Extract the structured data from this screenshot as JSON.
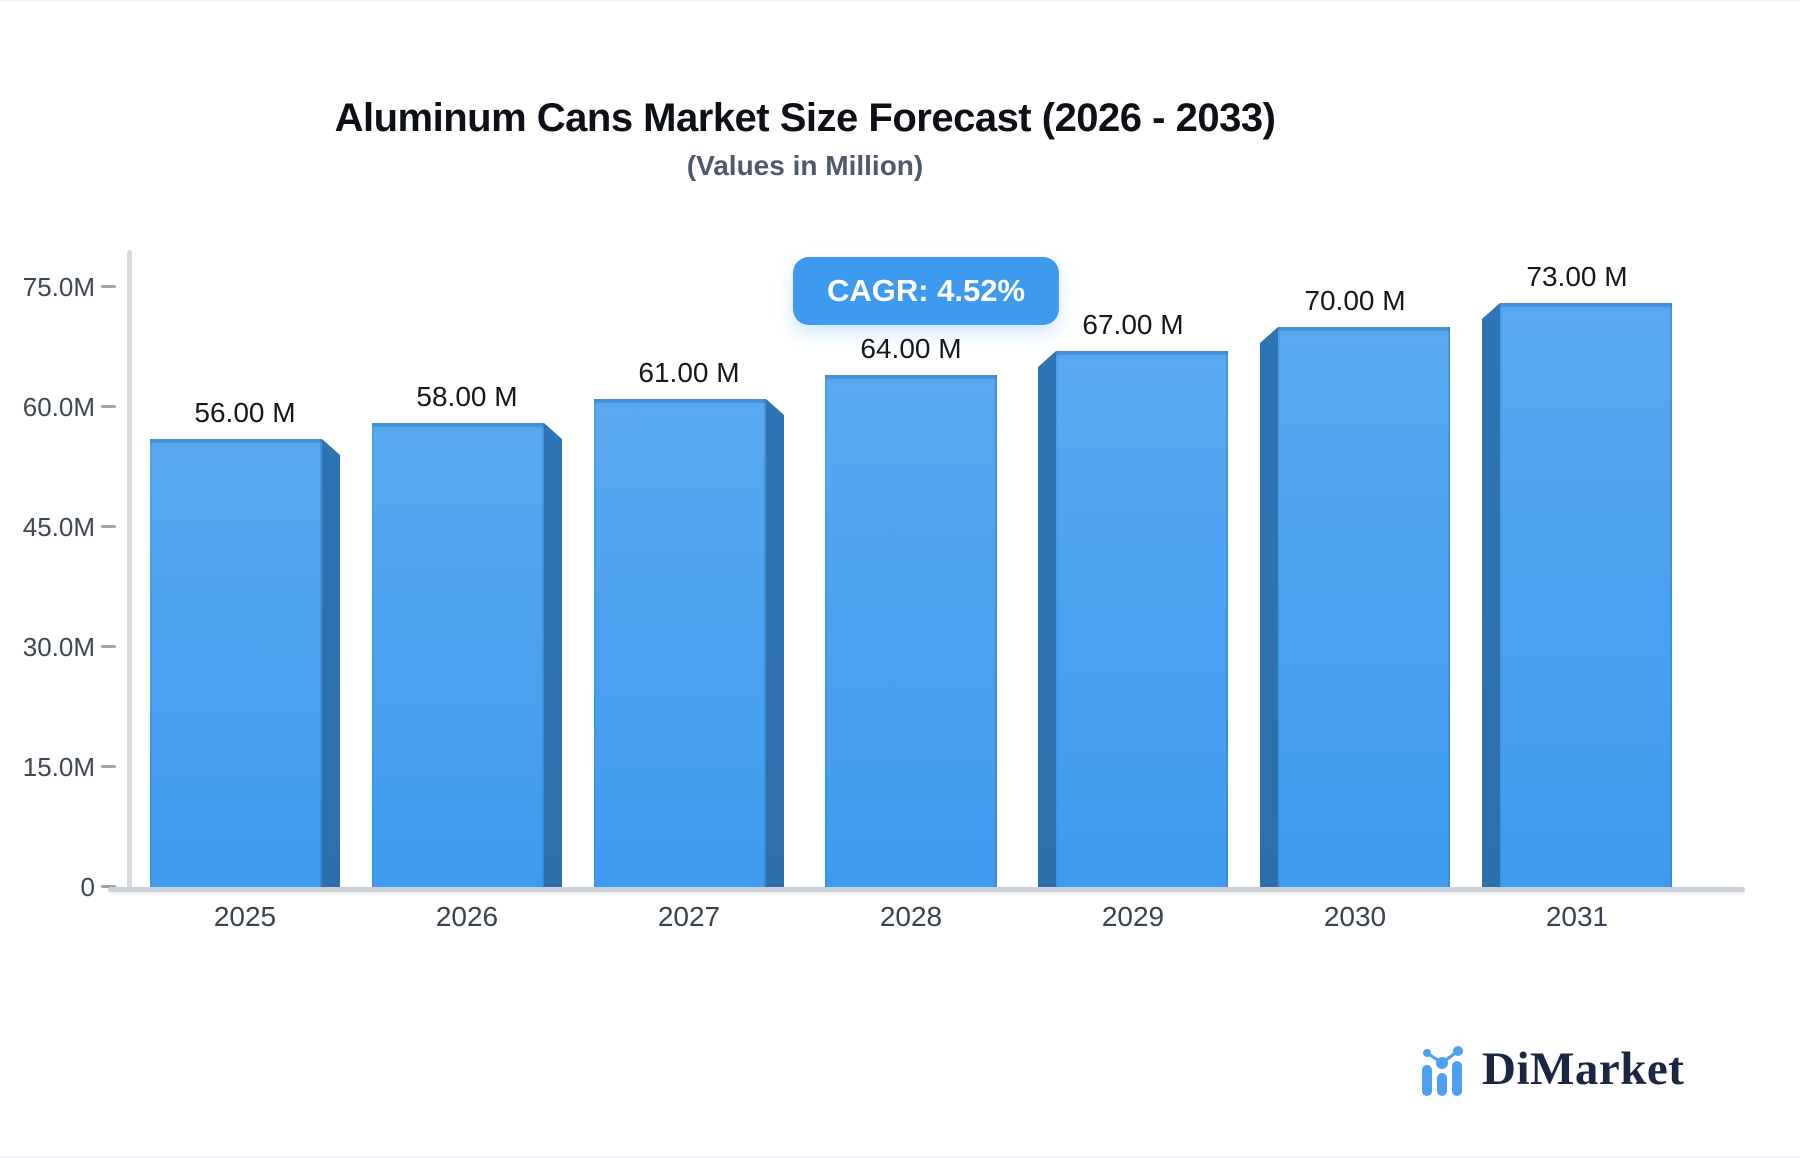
{
  "header": {
    "title": "Aluminum Cans Market Size Forecast (2026 - 2033)",
    "subtitle": "(Values in Million)"
  },
  "cagr": {
    "label": "CAGR: 4.52%",
    "background": "#3e9aef",
    "text_color": "#ffffff"
  },
  "chart_data": {
    "type": "bar",
    "title": "Aluminum Cans Market Size Forecast (2026 - 2033)",
    "subtitle": "(Values in Million)",
    "categories": [
      "2025",
      "2026",
      "2027",
      "2028",
      "2029",
      "2030",
      "2031"
    ],
    "values": [
      56,
      58,
      61,
      64,
      67,
      70,
      73
    ],
    "value_labels": [
      "56.00 M",
      "58.00 M",
      "61.00 M",
      "64.00 M",
      "67.00 M",
      "70.00 M",
      "73.00 M"
    ],
    "unit": "Million",
    "ylim": [
      0,
      75
    ],
    "ytick_values": [
      75,
      60,
      45,
      30,
      15,
      0
    ],
    "ytick_labels": [
      "75.0M",
      "60.0M",
      "45.0M",
      "30.0M",
      "15.0M",
      "0"
    ],
    "grid": false,
    "legend": "none",
    "annotation": "CAGR: 4.52%",
    "colors": {
      "bar_face_top": "#58a9f1",
      "bar_face_bottom": "#3f9bf0",
      "bar_top_edge": "#4590da",
      "bar_edge": "#3c87cf",
      "bar_side": "#2e74b4",
      "axis_line": "#d6dbe2",
      "tick": "#9aa3ae",
      "tick_label": "#3e4754",
      "value_label": "#15181d"
    }
  },
  "footer": {
    "brand": "DiMarket",
    "brand_color": "#1a2742",
    "icon": "dimarket-bars-logo-icon",
    "icon_color": "#4da0f2"
  }
}
